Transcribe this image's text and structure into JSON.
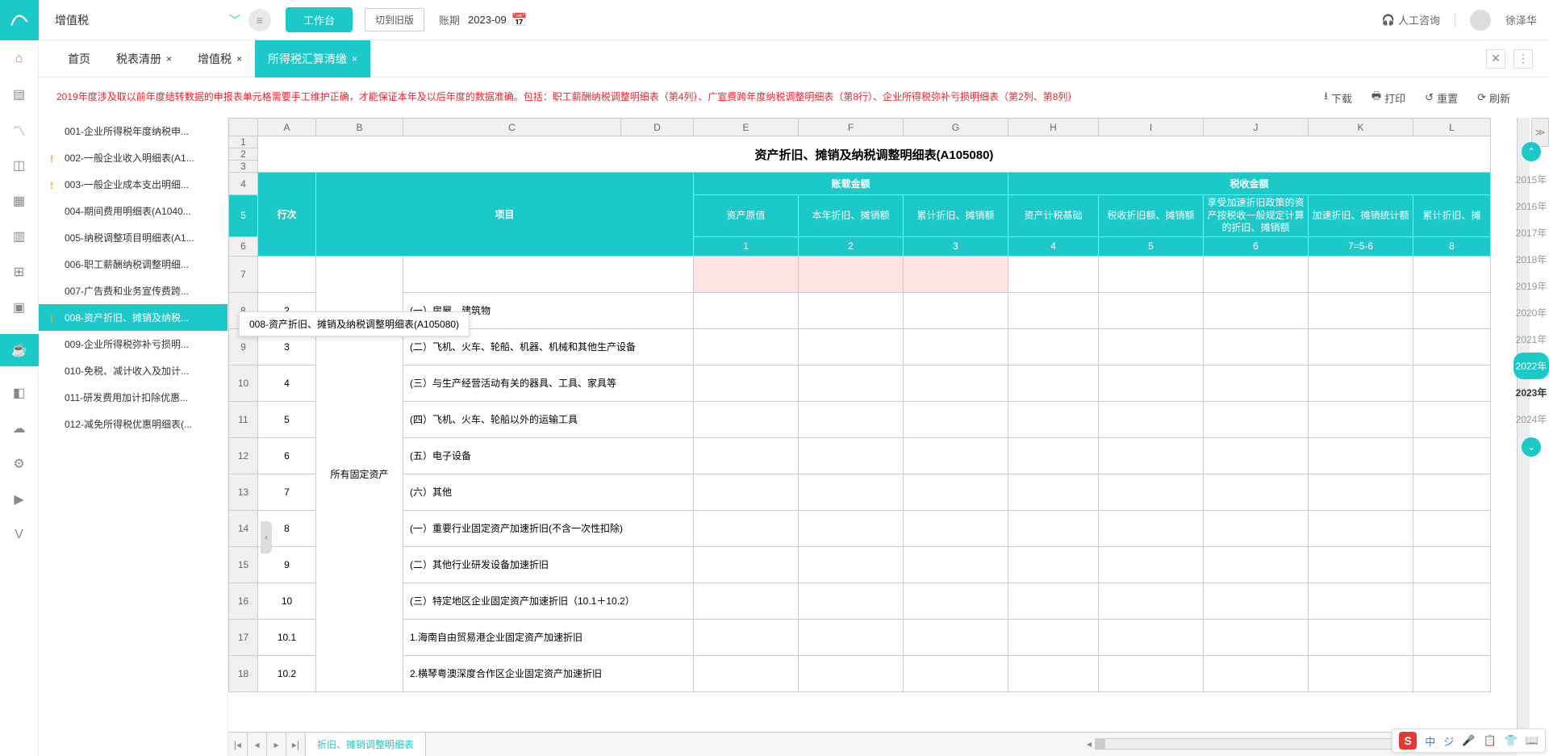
{
  "header": {
    "company": "增值税",
    "workbench_btn": "工作台",
    "switch_old": "切到旧版",
    "period_label": "账期",
    "period_value": "2023-09",
    "consult": "人工咨询",
    "username": "徐泽华"
  },
  "tabs": [
    {
      "label": "首页",
      "closable": false,
      "active": false
    },
    {
      "label": "税表清册",
      "closable": true,
      "active": false
    },
    {
      "label": "增值税",
      "closable": true,
      "active": false
    },
    {
      "label": "所得税汇算清缴",
      "closable": true,
      "active": true
    }
  ],
  "warning": "2019年度涉及取以前年度结转数据的申报表单元格需要手工维护正确，才能保证本年及以后年度的数据准确。包括：职工薪酬纳税调整明细表（第4列）、广宣费跨年度纳税调整明细表（第8行）、企业所得税弥补亏损明细表（第2列、第8列）",
  "toolbar": {
    "download": "下载",
    "print": "打印",
    "reset": "重置",
    "refresh": "刷新"
  },
  "tree": [
    {
      "label": "001-企业所得税年度纳税申...",
      "warn": false,
      "selected": false
    },
    {
      "label": "002-一般企业收入明细表(A1...",
      "warn": true,
      "selected": false
    },
    {
      "label": "003-一般企业成本支出明细...",
      "warn": true,
      "selected": false
    },
    {
      "label": "004-期间费用明细表(A1040...",
      "warn": false,
      "selected": false
    },
    {
      "label": "005-纳税调整项目明细表(A1...",
      "warn": false,
      "selected": false
    },
    {
      "label": "006-职工薪酬纳税调整明细...",
      "warn": false,
      "selected": false
    },
    {
      "label": "007-广告费和业务宣传费跨...",
      "warn": false,
      "selected": false
    },
    {
      "label": "008-资产折旧、摊销及纳税...",
      "warn": true,
      "selected": true
    },
    {
      "label": "009-企业所得税弥补亏损明...",
      "warn": false,
      "selected": false
    },
    {
      "label": "010-免税、减计收入及加计...",
      "warn": false,
      "selected": false
    },
    {
      "label": "011-研发费用加计扣除优惠...",
      "warn": false,
      "selected": false
    },
    {
      "label": "012-减免所得税优惠明细表(...",
      "warn": false,
      "selected": false
    }
  ],
  "tooltip": "008-资产折旧、摊销及纳税调整明细表(A105080)",
  "sheet": {
    "title": "资产折旧、摊销及纳税调整明细表(A105080)",
    "col_letters": [
      "A",
      "B",
      "C",
      "D",
      "E",
      "F",
      "G",
      "H",
      "I",
      "J",
      "K",
      "L"
    ],
    "header_row1_col1": "行次",
    "header_row1_col2": "项目",
    "header_group1": "账载金额",
    "header_group2": "税收金额",
    "sub_headers": [
      "资产原值",
      "本年折旧、摊销额",
      "累计折旧、摊销额",
      "资产计税基础",
      "税收折旧额、摊销额",
      "享受加速折旧政策的资产按税收一般规定计算的折旧、摊销额",
      "加速折旧、摊销统计额",
      "累计折旧、摊"
    ],
    "num_headers": [
      "1",
      "2",
      "3",
      "4",
      "5",
      "6",
      "7=5-6",
      "8"
    ],
    "category_label": "所有固定资产",
    "rows": [
      {
        "n": "7",
        "line": "",
        "text": "",
        "pink": true
      },
      {
        "n": "8",
        "line": "2",
        "text": "(一）房屋、建筑物"
      },
      {
        "n": "9",
        "line": "3",
        "text": "(二）飞机、火车、轮船、机器、机械和其他生产设备"
      },
      {
        "n": "10",
        "line": "4",
        "text": "(三）与生产经营活动有关的器具、工具、家具等"
      },
      {
        "n": "11",
        "line": "5",
        "text": "(四）飞机、火车、轮船以外的运输工具"
      },
      {
        "n": "12",
        "line": "6",
        "text": "(五）电子设备"
      },
      {
        "n": "13",
        "line": "7",
        "text": "(六）其他"
      },
      {
        "n": "14",
        "line": "8",
        "text": "(一）重要行业固定资产加速折旧(不含一次性扣除)"
      },
      {
        "n": "15",
        "line": "9",
        "text": "(二）其他行业研发设备加速折旧"
      },
      {
        "n": "16",
        "line": "10",
        "text": "(三）特定地区企业固定资产加速折旧（10.1＋10.2）"
      },
      {
        "n": "17",
        "line": "10.1",
        "text": "1.海南自由贸易港企业固定资产加速折旧"
      },
      {
        "n": "18",
        "line": "10.2",
        "text": "2.横琴粤澳深度合作区企业固定资产加速折旧"
      }
    ],
    "tab_label": "折旧、摊销调整明细表",
    "col_widths": {
      "rowhdr": 36,
      "A": 72,
      "B": 108,
      "C": 270,
      "D": 90,
      "E": 130,
      "F": 130,
      "G": 130,
      "H": 112,
      "I": 130,
      "J": 130,
      "K": 130,
      "L": 96
    },
    "colors": {
      "teal": "#1cc8c8",
      "pink": "#fce4e4",
      "grid": "#cccccc",
      "hdr_bg": "#f0f0f0"
    }
  },
  "years": [
    "2015年",
    "2016年",
    "2017年",
    "2018年",
    "2019年",
    "2020年",
    "2021年",
    "2022年",
    "2023年",
    "2024年"
  ],
  "year_active": "2022年",
  "year_current": "2023年",
  "ime": {
    "logo": "S",
    "items": [
      "中",
      "ジ",
      "🎤",
      "📋",
      "👕",
      "📖"
    ]
  }
}
